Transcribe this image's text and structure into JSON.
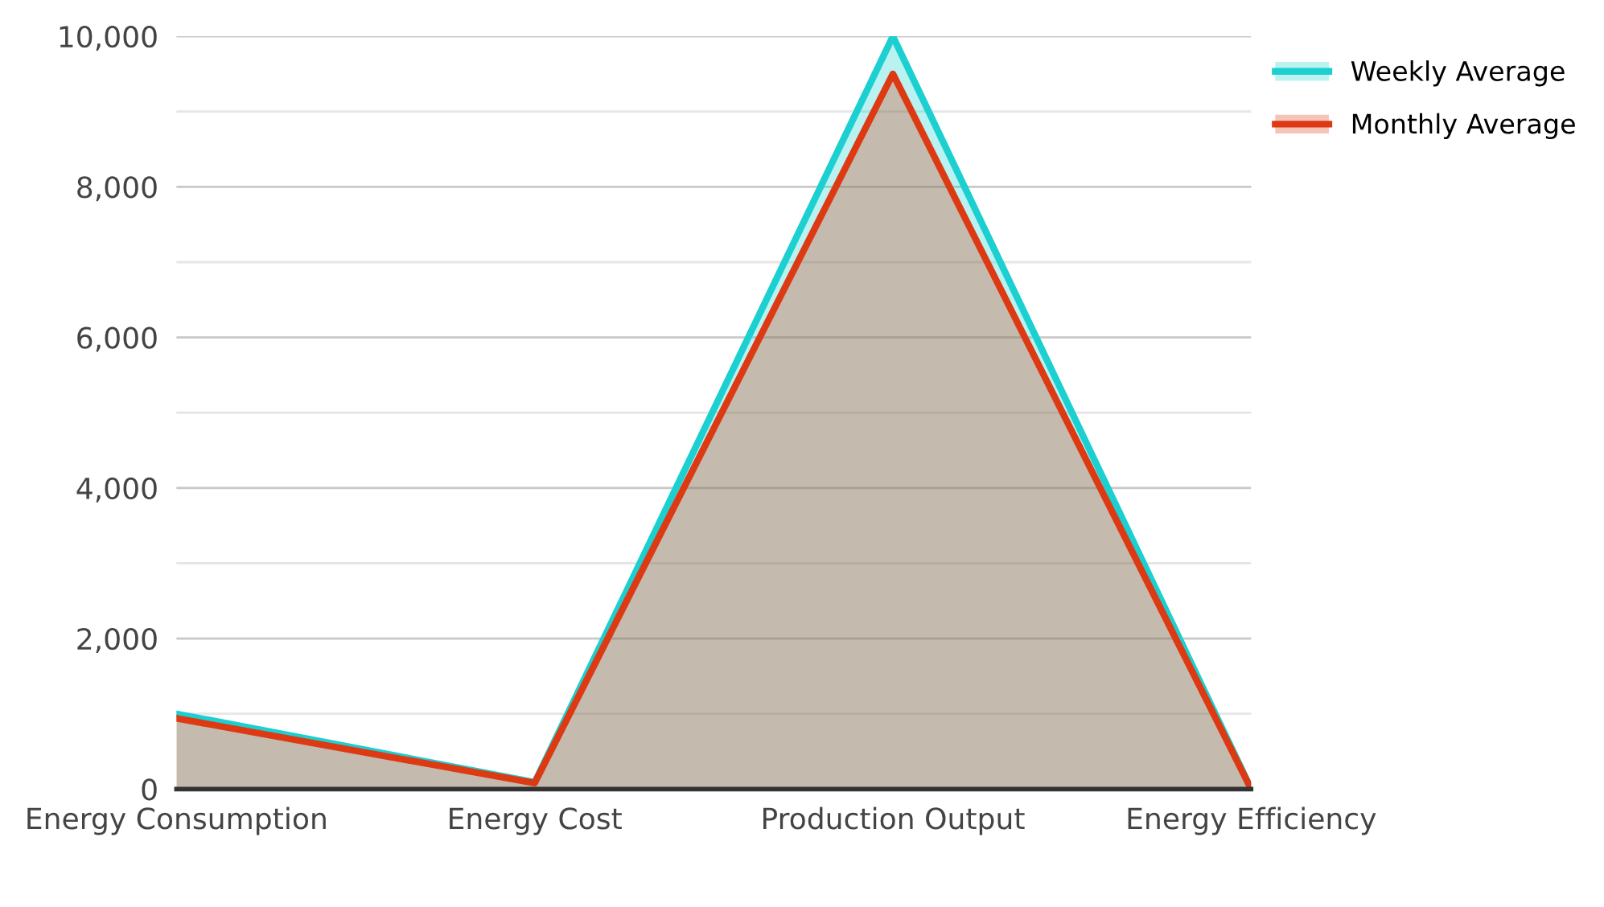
{
  "chart_data": {
    "type": "area",
    "categories": [
      "Energy Consumption",
      "Energy Cost",
      "Production Output",
      "Energy Efficiency"
    ],
    "series": [
      {
        "name": "Weekly Average",
        "color": "#1ccfd0",
        "values": [
          1000,
          90,
          10000,
          0
        ]
      },
      {
        "name": "Monthly Average",
        "color": "#dd3a14",
        "values": [
          940,
          80,
          9500,
          0
        ]
      }
    ],
    "ylim": [
      0,
      10000
    ],
    "yticks": [
      {
        "value": 0,
        "label": "0"
      },
      {
        "value": 1000,
        "label": null
      },
      {
        "value": 2000,
        "label": "2,000"
      },
      {
        "value": 3000,
        "label": null
      },
      {
        "value": 4000,
        "label": "4,000"
      },
      {
        "value": 5000,
        "label": null
      },
      {
        "value": 6000,
        "label": "6,000"
      },
      {
        "value": 7000,
        "label": null
      },
      {
        "value": 8000,
        "label": "8,000"
      },
      {
        "value": 9000,
        "label": null
      },
      {
        "value": 10000,
        "label": "10,000"
      }
    ],
    "grid": "y",
    "legend": "top right"
  }
}
